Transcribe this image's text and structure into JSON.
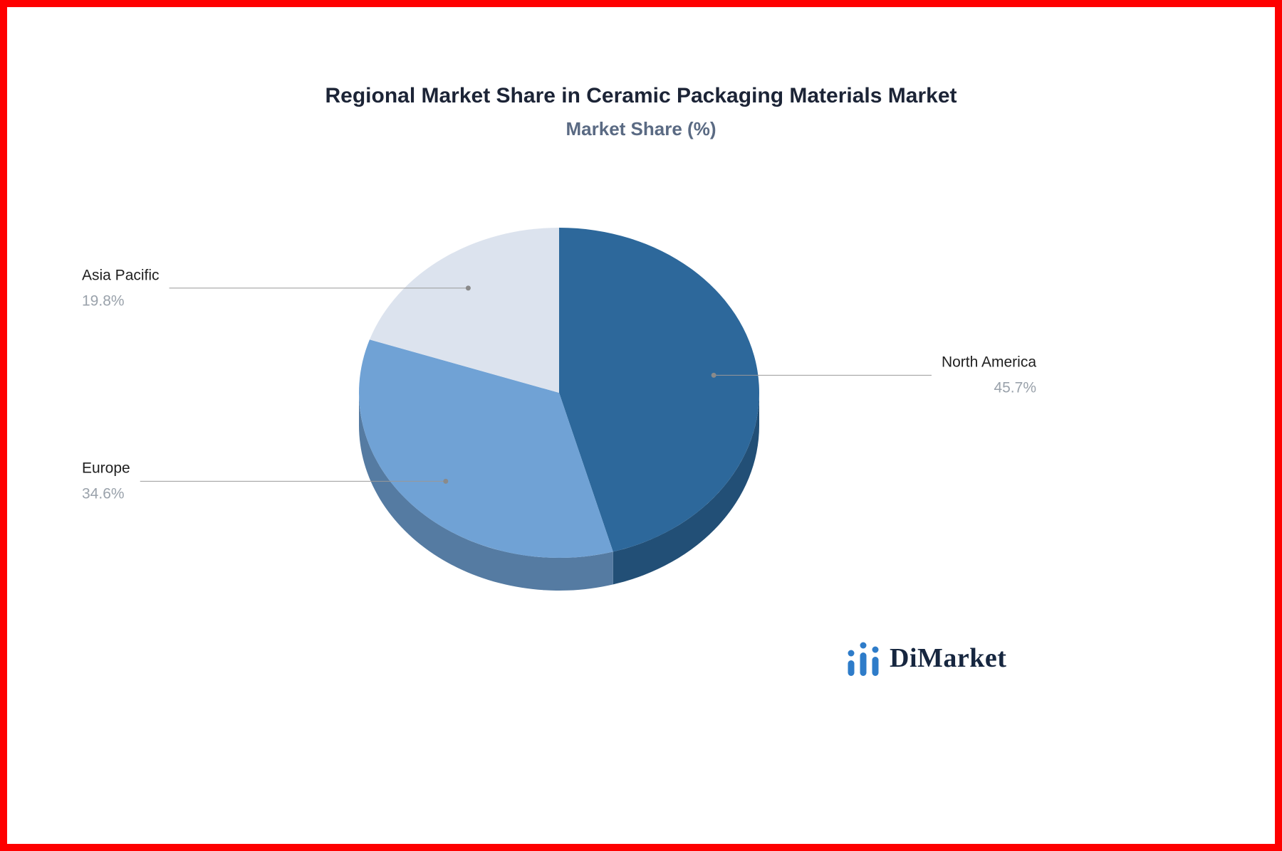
{
  "page": {
    "background": "#ffffff",
    "border_color": "#fe0000"
  },
  "header": {
    "title": "Regional Market Share in Ceramic Packaging Materials Market",
    "subtitle": "Market Share (%)",
    "title_color": "#1c2436",
    "subtitle_color": "#5a6a83"
  },
  "chart_data": {
    "type": "pie",
    "style": "3d",
    "title": "Regional Market Share in Ceramic Packaging Materials Market",
    "subtitle": "Market Share (%)",
    "unit": "%",
    "start_angle_deg": 0,
    "direction": "clockwise",
    "slices": [
      {
        "label": "North America",
        "value": 45.7,
        "color": "#2d689b"
      },
      {
        "label": "Europe",
        "value": 34.6,
        "color": "#70a2d5"
      },
      {
        "label": "Asia Pacific",
        "value": 19.8,
        "color": "#dce3ee"
      }
    ],
    "legend": "none",
    "label_color": "#1f1f1f",
    "value_color": "#9aa2ab",
    "leader_line_color": "#999999",
    "leader_dot_color": "#8a8a8a"
  },
  "logo": {
    "text": "DiMarket",
    "text_color": "#16263f",
    "icon_color": "#2e7cc9"
  }
}
